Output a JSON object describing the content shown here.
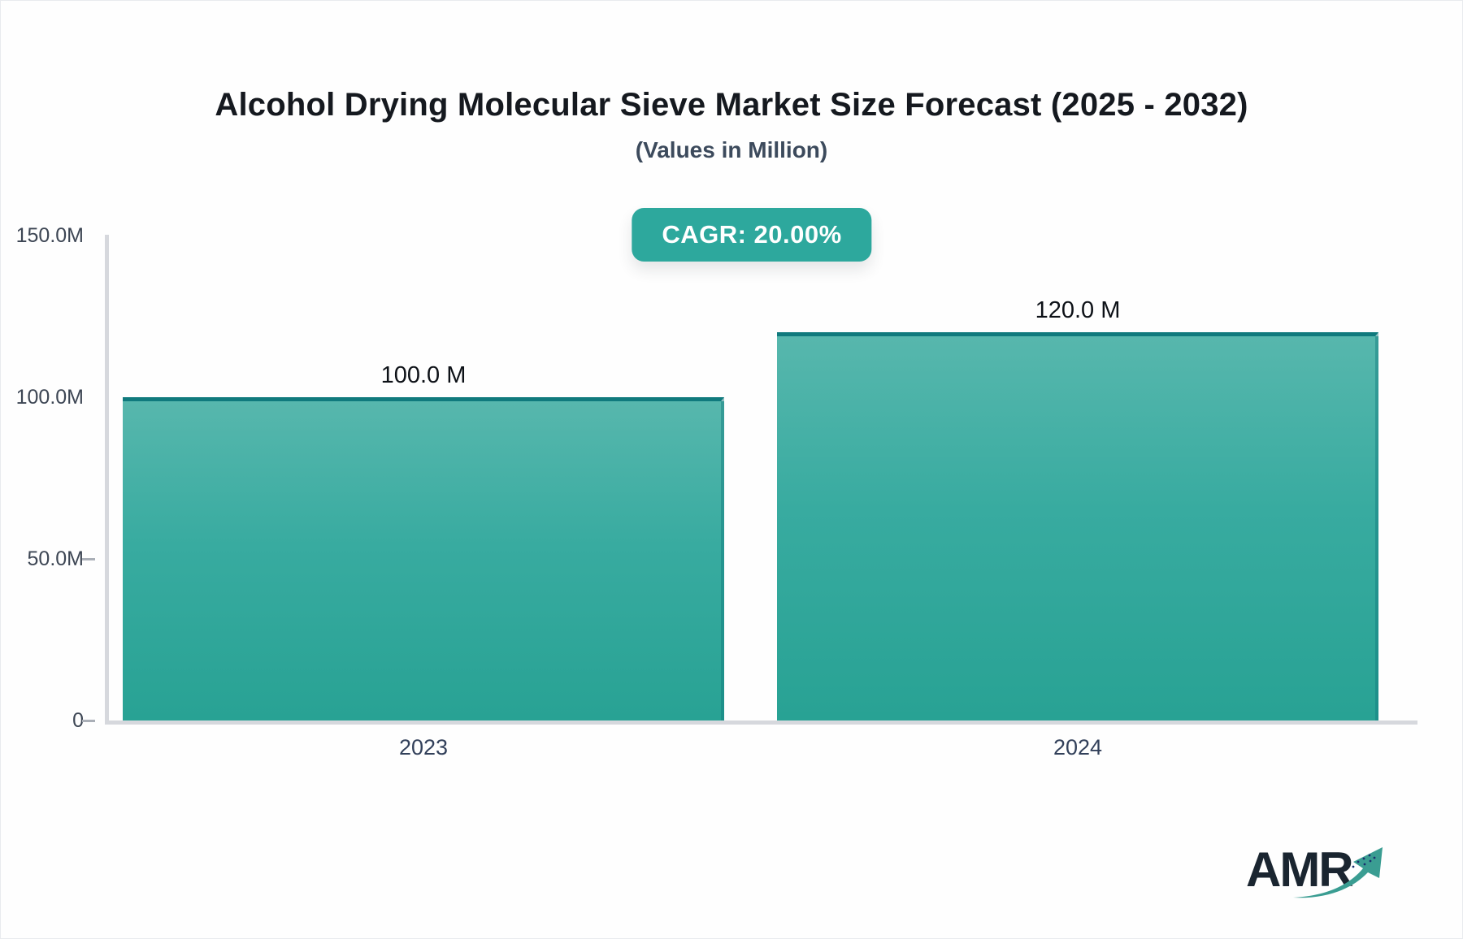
{
  "page": {
    "title": "Alcohol Drying Molecular Sieve Market Size Forecast (2025 - 2032)",
    "subtitle": "(Values in Million)",
    "badge_label": "CAGR: 20.00%",
    "logo_text": "AMR"
  },
  "colors": {
    "accent_teal": "#2da89d",
    "bar_gradient_top": "#57b7ad",
    "bar_gradient_bottom": "#28a294",
    "bar_top_border": "#107a7d",
    "axis_line": "#d6d8dd",
    "title_text": "#15191f",
    "subtitle_text": "#3c4a5c",
    "y_label_text": "#3d4654",
    "x_label_text": "#32405a",
    "value_label_text": "#0d1117",
    "badge_text": "#ffffff",
    "logo_navy": "#1a2530",
    "logo_arrow_teal": "#3a9d92"
  },
  "chart_data": {
    "type": "bar",
    "title": "Alcohol Drying Molecular Sieve Market Size Forecast (2025 - 2032)",
    "subtitle": "(Values in Million)",
    "unit": "Million",
    "cagr_percent": "20.00%",
    "categories": [
      "2023",
      "2024"
    ],
    "values": [
      100.0,
      120.0
    ],
    "value_labels": [
      "100.0 M",
      "120.0 M"
    ],
    "ylim": [
      0,
      150
    ],
    "ytick_values": [
      150,
      100,
      50,
      0
    ],
    "ytick_labels": [
      "150.0M",
      "100.0M",
      "50.0M",
      "0"
    ],
    "ytick_dash_values": [
      50,
      0
    ],
    "grid": false,
    "legend": false,
    "bar_label_position": "above-bar"
  }
}
